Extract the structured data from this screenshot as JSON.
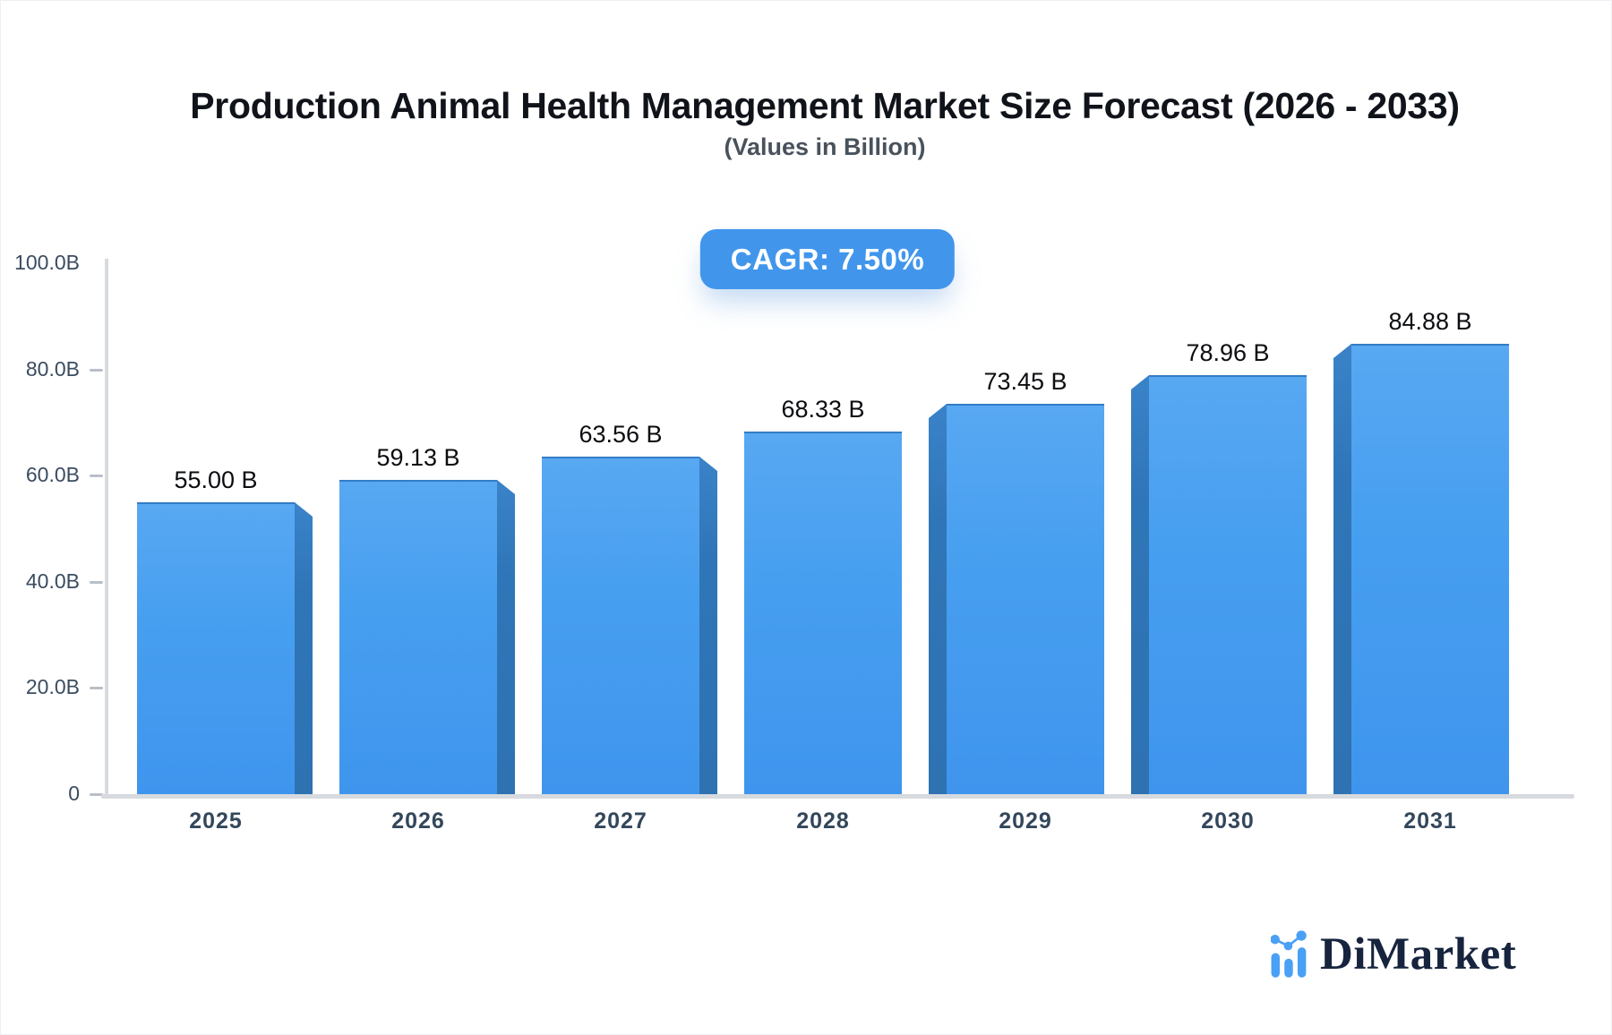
{
  "header": {
    "title": "Production Animal Health Management Market Size Forecast (2026 - 2033)",
    "subtitle": "(Values in Billion)",
    "cagr_badge": "CAGR: 7.50%"
  },
  "chart_data": {
    "type": "bar",
    "title": "Production Animal Health Management Market Size Forecast (2026 - 2033)",
    "subtitle": "(Values in Billion)",
    "unit": "Billion",
    "cagr": "7.50%",
    "categories": [
      "2025",
      "2026",
      "2027",
      "2028",
      "2029",
      "2030",
      "2031"
    ],
    "values": [
      55.0,
      59.13,
      63.56,
      68.33,
      73.45,
      78.96,
      84.88
    ],
    "bar_labels": [
      "55.00 B",
      "59.13 B",
      "63.56 B",
      "68.33 B",
      "73.45 B",
      "78.96 B",
      "84.88 B"
    ],
    "xlabel": "",
    "ylabel": "",
    "ylim": [
      0,
      100
    ],
    "yticks": [
      {
        "label": "100.0B",
        "value": 100,
        "dash": false
      },
      {
        "label": "80.0B",
        "value": 80,
        "dash": true
      },
      {
        "label": "60.0B",
        "value": 60,
        "dash": true
      },
      {
        "label": "40.0B",
        "value": 40,
        "dash": true
      },
      {
        "label": "20.0B",
        "value": 20,
        "dash": true
      },
      {
        "label": "0",
        "value": 0,
        "dash": true
      }
    ],
    "grid": false,
    "legend": false,
    "bar_color": "#459df0",
    "bar_side_color": "#2f76b8",
    "style": "3d-extruded-bars"
  },
  "branding": {
    "logo_text": "DiMarket",
    "logo_icon": "mini-bar-line-chart-icon",
    "logo_icon_color": "#4aa0f5",
    "logo_text_color": "#17243e"
  }
}
